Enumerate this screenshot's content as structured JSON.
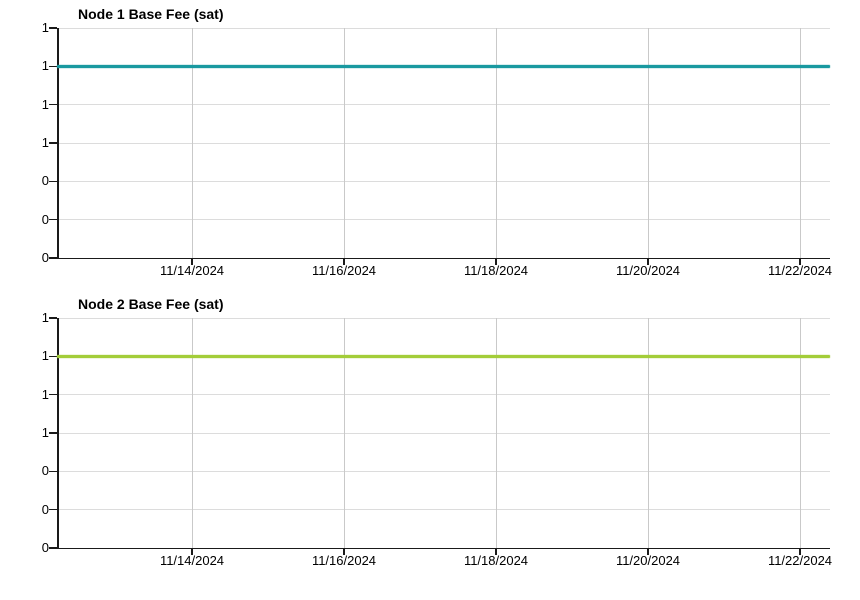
{
  "colors": {
    "background": "#ffffff",
    "axis": "#1a1a1a",
    "horizontal_grid": "#dcdcdc",
    "vertical_grid": "#c9c9c9",
    "label_text": "#000000",
    "node1_line": "#1999a0",
    "node2_line": "#a3cd39"
  },
  "chart_data": [
    {
      "type": "line",
      "title": "Node 1 Base Fee (sat)",
      "xlabel": "",
      "ylabel": "",
      "x_tick_labels": [
        "11/14/2024",
        "11/16/2024",
        "11/18/2024",
        "11/20/2024",
        "11/22/2024"
      ],
      "y_tick_labels": [
        "1",
        "1",
        "1",
        "1",
        "0",
        "0",
        "0"
      ],
      "y_tick_values": [
        1.2,
        1.0,
        0.8,
        0.6,
        0.4,
        0.2,
        0
      ],
      "ylim": [
        0,
        1.2
      ],
      "grid": true,
      "legend": false,
      "series": [
        {
          "name": "Node 1 Base Fee (sat)",
          "color": "#1999a0",
          "constant_value": 1
        }
      ]
    },
    {
      "type": "line",
      "title": "Node 2 Base Fee (sat)",
      "xlabel": "",
      "ylabel": "",
      "x_tick_labels": [
        "11/14/2024",
        "11/16/2024",
        "11/18/2024",
        "11/20/2024",
        "11/22/2024"
      ],
      "y_tick_labels": [
        "1",
        "1",
        "1",
        "1",
        "0",
        "0",
        "0"
      ],
      "y_tick_values": [
        1.2,
        1.0,
        0.8,
        0.6,
        0.4,
        0.2,
        0
      ],
      "ylim": [
        0,
        1.2
      ],
      "grid": true,
      "legend": false,
      "series": [
        {
          "name": "Node 2 Base Fee (sat)",
          "color": "#a3cd39",
          "constant_value": 1
        }
      ]
    }
  ]
}
